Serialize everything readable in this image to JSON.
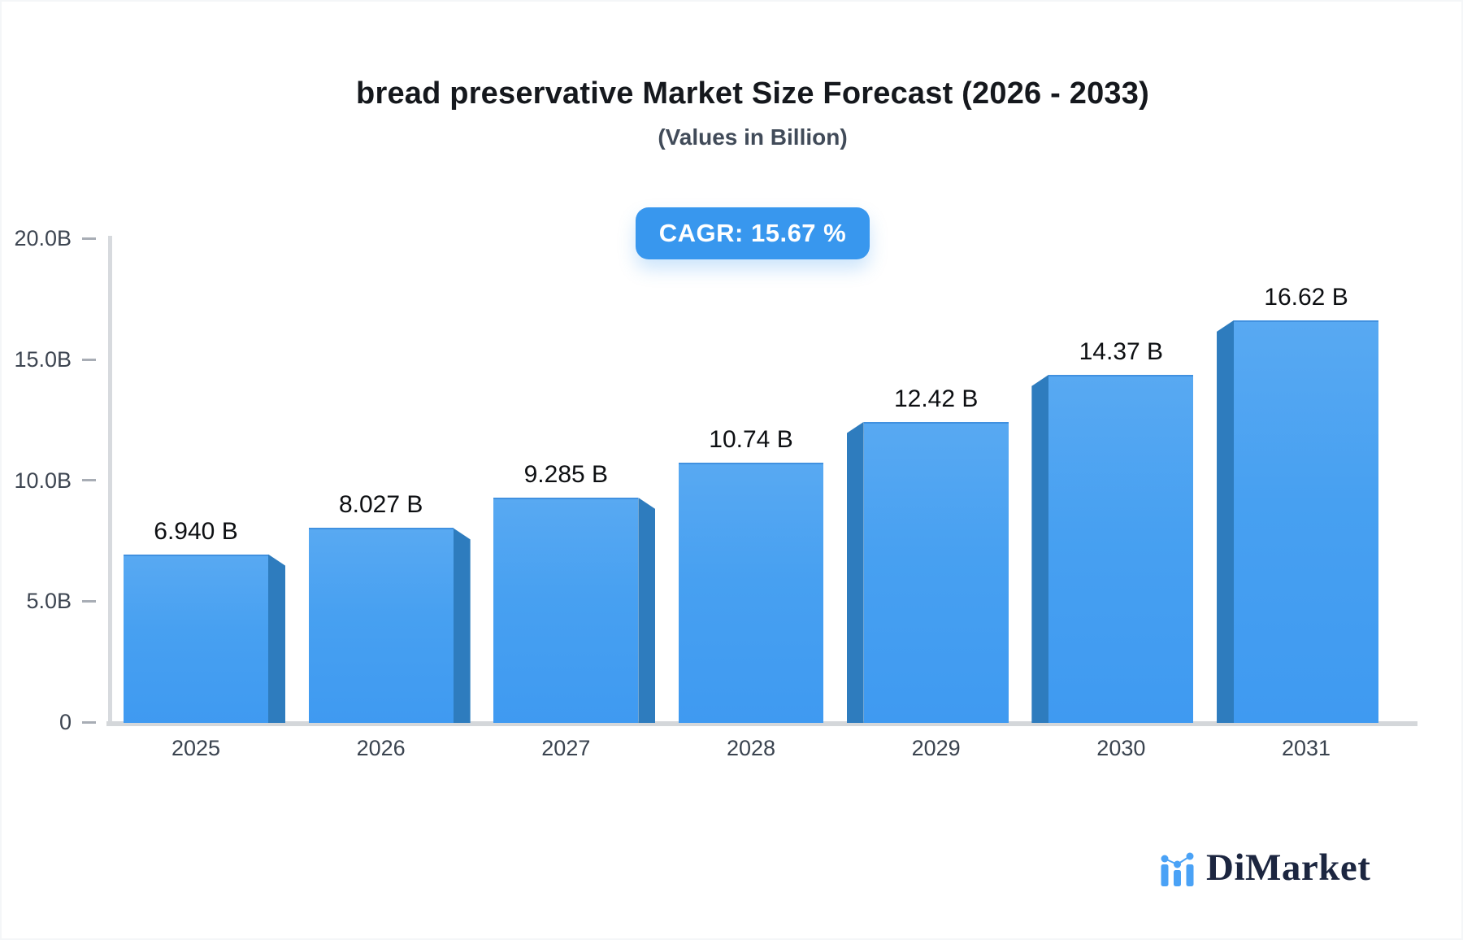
{
  "header": {
    "title": "bread preservative Market Size Forecast (2026 - 2033)",
    "subtitle": "(Values in Billion)"
  },
  "badge": {
    "label": "CAGR: 15.67 %"
  },
  "chart_data": {
    "type": "bar",
    "title": "bread preservative Market Size Forecast (2026 - 2033)",
    "subtitle": "(Values in Billion)",
    "categories": [
      "2025",
      "2026",
      "2027",
      "2028",
      "2029",
      "2030",
      "2031"
    ],
    "values": [
      6.94,
      8.027,
      9.285,
      10.74,
      12.42,
      14.37,
      16.62
    ],
    "value_labels": [
      "6.940 B",
      "8.027 B",
      "9.285 B",
      "10.74 B",
      "12.42 B",
      "14.37 B",
      "16.62 B"
    ],
    "y_ticks": [
      {
        "label": "20.0B",
        "value": 20
      },
      {
        "label": "15.0B",
        "value": 15
      },
      {
        "label": "10.0B",
        "value": 10
      },
      {
        "label": "5.0B",
        "value": 5
      },
      {
        "label": "0",
        "value": 0
      }
    ],
    "ylim": [
      0,
      20
    ],
    "grid": false,
    "legend": "none",
    "style": "3d-perspective-bars"
  },
  "colors": {
    "bar_face_top": "#58a9f2",
    "bar_face_bottom": "#3f9af1",
    "bar_side": "#2e7cbe",
    "badge_bg": "#3897ee",
    "badge_text": "#ffffff",
    "axis_line": "#d7dade",
    "tick": "#a8adb5",
    "title": "#15181d",
    "subtitle": "#414b59",
    "axis_label": "#3d4551",
    "value_label": "#0d0f12",
    "logo_navy": "#1c2640",
    "logo_blue": "#4aa2f6"
  },
  "logo": {
    "text": "DiMarket",
    "icon": "mini-bar-chart-icon"
  }
}
